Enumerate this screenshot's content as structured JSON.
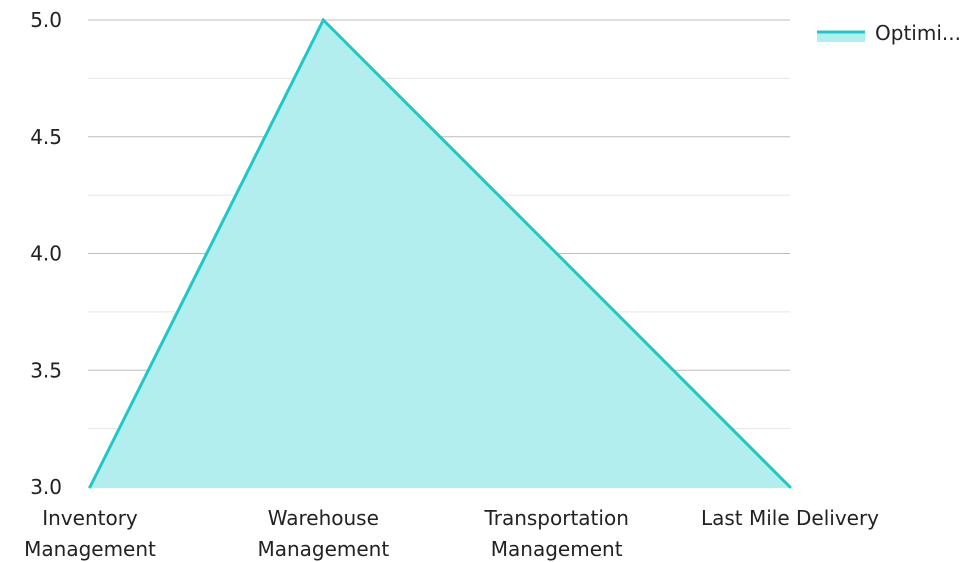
{
  "chart_data": {
    "type": "area",
    "categories": [
      [
        "Inventory",
        "Management"
      ],
      [
        "Warehouse",
        "Management"
      ],
      [
        "Transportation",
        "Management"
      ],
      [
        "Last Mile Delivery"
      ]
    ],
    "series": [
      {
        "name": "Optimi...",
        "values": [
          3.0,
          5.0,
          4.0,
          3.0
        ]
      }
    ],
    "ylim": [
      3.0,
      5.0
    ],
    "yticks": [
      "3.0",
      "3.5",
      "4.0",
      "4.5",
      "5.0"
    ],
    "grid": true,
    "legend": "top-right",
    "colors": {
      "line": "#1ec8c8",
      "fill": "#b2eeee",
      "grid_major": "#bdbdbd",
      "grid_minor": "#e6e6e6"
    }
  }
}
